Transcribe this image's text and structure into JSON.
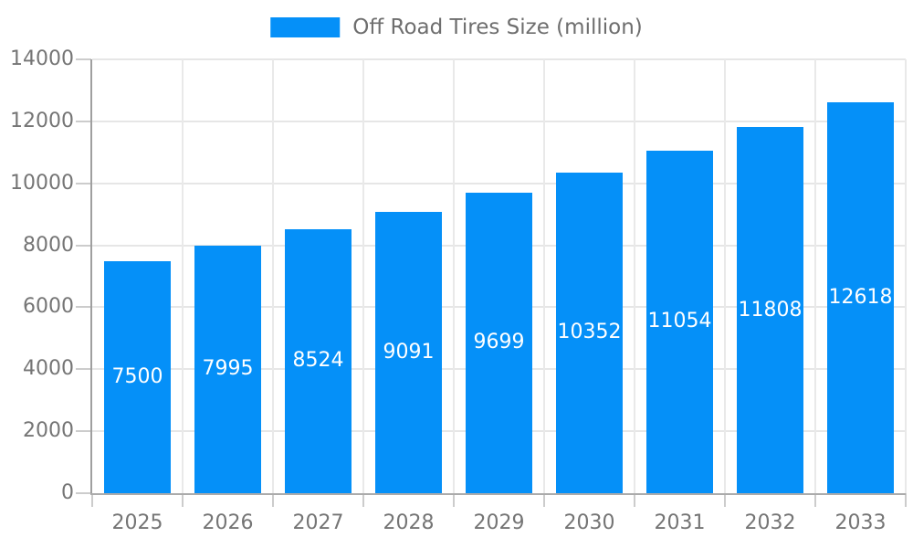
{
  "legend": {
    "label": "Off Road Tires Size (million)",
    "swatch_color": "#0590f8"
  },
  "chart_data": {
    "type": "bar",
    "title": "",
    "xlabel": "",
    "ylabel": "",
    "categories": [
      "2025",
      "2026",
      "2027",
      "2028",
      "2029",
      "2030",
      "2031",
      "2032",
      "2033"
    ],
    "series": [
      {
        "name": "Off Road Tires Size (million)",
        "values": [
          7500,
          7995,
          8524,
          9091,
          9699,
          10352,
          11054,
          11808,
          12618
        ]
      }
    ],
    "data_labels_visible": true,
    "ylim": [
      0,
      14000
    ],
    "yticks": [
      0,
      2000,
      4000,
      6000,
      8000,
      10000,
      12000,
      14000
    ],
    "grid": true,
    "legend_position": "top"
  },
  "colors": {
    "bar": "#0590f8",
    "bar_label": "#ffffff",
    "axis_text": "#757575",
    "legend_text": "#6e6e6e",
    "gridline": "#e6e6e6",
    "tick": "#cccccc",
    "axis_line": "#a3a3a3"
  }
}
